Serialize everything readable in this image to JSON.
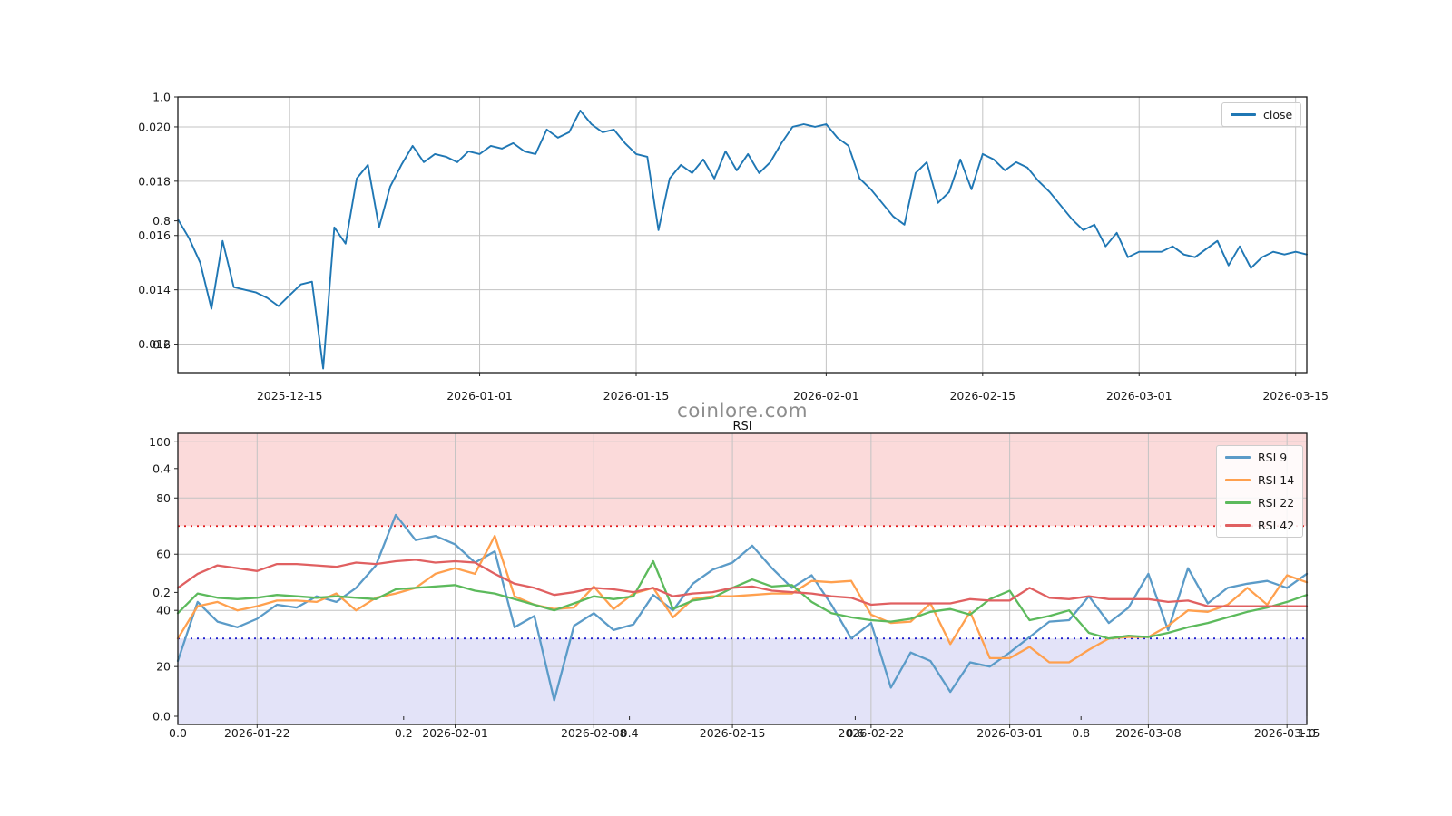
{
  "watermark": {
    "text": "coinlore.com"
  },
  "overlay_axis": {
    "y_ticks": [
      {
        "f": 1.0,
        "label": "1.0"
      },
      {
        "f": 0.8,
        "label": "0.8"
      },
      {
        "f": 0.6,
        "label": "0.6"
      },
      {
        "f": 0.4,
        "label": "0.4"
      },
      {
        "f": 0.2,
        "label": "0.2"
      },
      {
        "f": 0.0,
        "label": "0.0"
      }
    ],
    "x_ticks": [
      {
        "f": 0.0,
        "label": "0.0"
      },
      {
        "f": 0.2,
        "label": "0.2"
      },
      {
        "f": 0.4,
        "label": "0.4"
      },
      {
        "f": 0.6,
        "label": "0.6"
      },
      {
        "f": 0.8,
        "label": "0.8"
      },
      {
        "f": 1.0,
        "label": "1.0"
      }
    ]
  },
  "chart_data": [
    {
      "id": "price",
      "type": "line",
      "title": "",
      "grid": true,
      "legend_position": "upper right",
      "x_start": "2025-12-05",
      "x_step_days": 1,
      "ylim": [
        0.01095,
        0.0211
      ],
      "yticks": [
        {
          "v": 0.02,
          "label": "0.020"
        },
        {
          "v": 0.018,
          "label": "0.018"
        },
        {
          "v": 0.016,
          "label": "0.016"
        },
        {
          "v": 0.014,
          "label": "0.014"
        },
        {
          "v": 0.012,
          "label": "0.012"
        }
      ],
      "xticks": [
        {
          "i": 10,
          "label": "2025-12-15"
        },
        {
          "i": 27,
          "label": "2026-01-01"
        },
        {
          "i": 41,
          "label": "2026-01-15"
        },
        {
          "i": 58,
          "label": "2026-02-01"
        },
        {
          "i": 72,
          "label": "2026-02-15"
        },
        {
          "i": 86,
          "label": "2026-03-01"
        },
        {
          "i": 100,
          "label": "2026-03-15"
        }
      ],
      "series": [
        {
          "name": "close",
          "color": "#1f77b4",
          "values": [
            0.0166,
            0.0159,
            0.015,
            0.0133,
            0.0158,
            0.0141,
            0.014,
            0.0139,
            0.0137,
            0.0134,
            0.0138,
            0.0142,
            0.0143,
            0.0111,
            0.0163,
            0.0157,
            0.0181,
            0.0186,
            0.0163,
            0.0178,
            0.0186,
            0.0193,
            0.0187,
            0.019,
            0.0189,
            0.0187,
            0.0191,
            0.019,
            0.0193,
            0.0192,
            0.0194,
            0.0191,
            0.019,
            0.0199,
            0.0196,
            0.0198,
            0.0206,
            0.0201,
            0.0198,
            0.0199,
            0.0194,
            0.019,
            0.0189,
            0.0162,
            0.0181,
            0.0186,
            0.0183,
            0.0188,
            0.0181,
            0.0191,
            0.0184,
            0.019,
            0.0183,
            0.0187,
            0.0194,
            0.02,
            0.0201,
            0.02,
            0.0201,
            0.0196,
            0.0193,
            0.0181,
            0.0177,
            0.0172,
            0.0167,
            0.0164,
            0.0183,
            0.0187,
            0.0172,
            0.0176,
            0.0188,
            0.0177,
            0.019,
            0.0188,
            0.0184,
            0.0187,
            0.0185,
            0.018,
            0.0176,
            0.0171,
            0.0166,
            0.0162,
            0.0164,
            0.0156,
            0.0161,
            0.0152,
            0.0154,
            0.0154,
            0.0154,
            0.0156,
            0.0153,
            0.0152,
            0.0155,
            0.0158,
            0.0149,
            0.0156,
            0.0148,
            0.0152,
            0.0154,
            0.0153,
            0.0154,
            0.0153
          ]
        }
      ]
    },
    {
      "id": "rsi",
      "type": "line",
      "title": "RSI",
      "grid": true,
      "legend_position": "upper right",
      "x_start": "2026-01-18",
      "x_step_days": 1,
      "ylim": [
        -0.6,
        103
      ],
      "yticks": [
        {
          "v": 100,
          "label": "100"
        },
        {
          "v": 80,
          "label": "80"
        },
        {
          "v": 60,
          "label": "60"
        },
        {
          "v": 40,
          "label": "40"
        },
        {
          "v": 20,
          "label": "20"
        }
      ],
      "xticks": [
        {
          "i": 4,
          "label": "2026-01-22"
        },
        {
          "i": 14,
          "label": "2026-02-01"
        },
        {
          "i": 21,
          "label": "2026-02-08"
        },
        {
          "i": 28,
          "label": "2026-02-15"
        },
        {
          "i": 35,
          "label": "2026-02-22"
        },
        {
          "i": 42,
          "label": "2026-03-01"
        },
        {
          "i": 49,
          "label": "2026-03-08"
        },
        {
          "i": 56,
          "label": "2026-03-15"
        }
      ],
      "thresholds": [
        {
          "value": 70,
          "color": "#e01b1b",
          "style": "dotted",
          "name": "overbought-line"
        },
        {
          "value": 30,
          "color": "#2121cc",
          "style": "dotted",
          "name": "oversold-line"
        }
      ],
      "bands": [
        {
          "from": 70,
          "to": 103,
          "color": "#fbdada",
          "name": "overbought-band"
        },
        {
          "from": -0.6,
          "to": 30,
          "color": "#e3e3f8",
          "name": "oversold-band"
        }
      ],
      "series": [
        {
          "name": "RSI 9",
          "color": "#5b9bc8",
          "values": [
            22,
            43,
            36,
            34,
            37,
            42,
            41,
            45,
            43,
            48,
            56,
            74,
            65,
            66.5,
            63.5,
            57,
            61,
            34,
            38,
            8,
            34.5,
            39,
            33,
            35,
            45.5,
            40,
            49.5,
            54.5,
            57,
            63,
            55,
            48,
            52.5,
            42,
            30,
            35.5,
            12.5,
            25,
            22,
            11,
            21.5,
            20,
            25,
            30.5,
            36,
            36.5,
            45,
            35.5,
            41,
            53,
            33,
            55,
            42.5,
            48,
            49.5,
            50.5,
            48,
            53
          ]
        },
        {
          "name": "RSI 14",
          "color": "#ffa04e",
          "values": [
            30,
            41.5,
            43,
            40,
            41.5,
            43.5,
            43.5,
            43,
            46,
            40,
            44.5,
            46,
            48,
            53,
            55,
            53,
            66.5,
            45,
            42,
            40.5,
            41,
            48.5,
            40.5,
            46,
            48,
            37.5,
            44,
            45,
            45,
            45.5,
            46,
            46,
            50.5,
            50,
            50.5,
            38.5,
            35.5,
            36,
            42.5,
            28,
            39.5,
            23,
            23,
            27,
            21.5,
            21.5,
            26,
            30,
            30.5,
            30.5,
            34.5,
            40,
            39.5,
            42,
            48,
            42,
            52.5,
            50
          ]
        },
        {
          "name": "RSI 22",
          "color": "#5cba5c",
          "values": [
            39,
            46,
            44.5,
            44,
            44.5,
            45.5,
            45,
            44.5,
            45,
            44.5,
            44,
            47.5,
            48,
            48.5,
            49,
            47,
            46,
            44,
            42,
            40,
            42.5,
            45,
            44,
            45,
            57.5,
            40.5,
            43.5,
            44.5,
            48,
            51,
            48.5,
            49,
            43,
            39,
            37.5,
            36.5,
            36,
            37,
            39.5,
            40.5,
            38.5,
            44,
            47,
            36.5,
            38,
            40,
            32,
            30,
            31,
            30.5,
            32,
            34,
            35.5,
            37.5,
            39.5,
            41,
            43,
            45.5
          ]
        },
        {
          "name": "RSI 42",
          "color": "#e06061",
          "values": [
            48,
            53,
            56,
            55,
            54,
            56.5,
            56.5,
            56,
            55.5,
            57,
            56.5,
            57.5,
            58,
            57,
            57.5,
            57,
            53,
            49.5,
            48,
            45.5,
            46.5,
            48,
            47.5,
            46.5,
            48,
            45,
            46,
            46.5,
            48,
            48.5,
            47,
            46.5,
            46,
            45,
            44.5,
            42,
            42.5,
            42.5,
            42.5,
            42.5,
            44,
            43.5,
            43.5,
            48,
            44.5,
            44,
            45,
            44,
            44,
            44,
            43,
            43.5,
            41.5,
            41.5,
            41.5,
            41.5,
            41.5,
            41.5
          ]
        }
      ]
    }
  ]
}
